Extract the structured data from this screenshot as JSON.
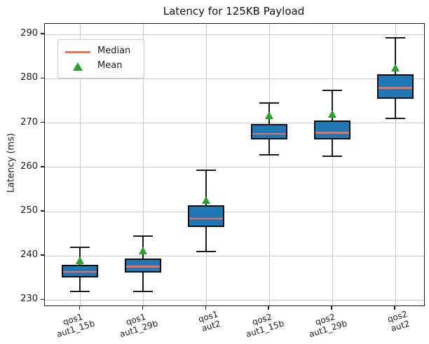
{
  "chart_data": {
    "type": "boxplot",
    "title": "Latency for 125KB Payload",
    "ylabel": "Latency (ms)",
    "xlabel": "",
    "ylim": [
      228.8,
      292.4
    ],
    "yticks": [
      230,
      240,
      250,
      260,
      270,
      280,
      290
    ],
    "grid": true,
    "legend": {
      "position": "upper-left",
      "entries": [
        {
          "label": "Median",
          "marker": "line",
          "color": "#ee7058"
        },
        {
          "label": "Mean",
          "marker": "triangle",
          "color": "#2ca02c"
        }
      ]
    },
    "categories": [
      "qos1\naut1_15b",
      "qos1\naut1_29b",
      "qos1\naut2",
      "qos2\naut1_15b",
      "qos2\naut1_29b",
      "qos2\naut2"
    ],
    "series": [
      {
        "label_lines": [
          "qos1",
          "aut1_15b"
        ],
        "whisker_low": 232.0,
        "q1": 235.2,
        "median": 236.4,
        "q3": 238.0,
        "whisker_high": 242.0,
        "mean": 239.0
      },
      {
        "label_lines": [
          "qos1",
          "aut1_29b"
        ],
        "whisker_low": 232.0,
        "q1": 236.2,
        "median": 237.6,
        "q3": 239.4,
        "whisker_high": 244.5,
        "mean": 241.2
      },
      {
        "label_lines": [
          "qos1",
          "aut2"
        ],
        "whisker_low": 241.0,
        "q1": 246.5,
        "median": 248.4,
        "q3": 251.4,
        "whisker_high": 259.3,
        "mean": 252.6
      },
      {
        "label_lines": [
          "qos2",
          "aut1_15b"
        ],
        "whisker_low": 262.8,
        "q1": 266.3,
        "median": 267.6,
        "q3": 269.7,
        "whisker_high": 274.6,
        "mean": 271.8
      },
      {
        "label_lines": [
          "qos2",
          "aut1_29b"
        ],
        "whisker_low": 262.5,
        "q1": 266.3,
        "median": 267.8,
        "q3": 270.5,
        "whisker_high": 277.3,
        "mean": 272.1
      },
      {
        "label_lines": [
          "qos2",
          "aut2"
        ],
        "whisker_low": 271.0,
        "q1": 275.5,
        "median": 277.9,
        "q3": 281.0,
        "whisker_high": 289.2,
        "mean": 282.5
      }
    ],
    "colors": {
      "box_fill": "#1f77b4",
      "box_edge": "#0d0d0d",
      "whisker": "#1a1a1a",
      "median": "#ee7058",
      "mean": "#2ca02c",
      "grid": "#c9c9c9",
      "text": "#1a1a1a"
    }
  }
}
